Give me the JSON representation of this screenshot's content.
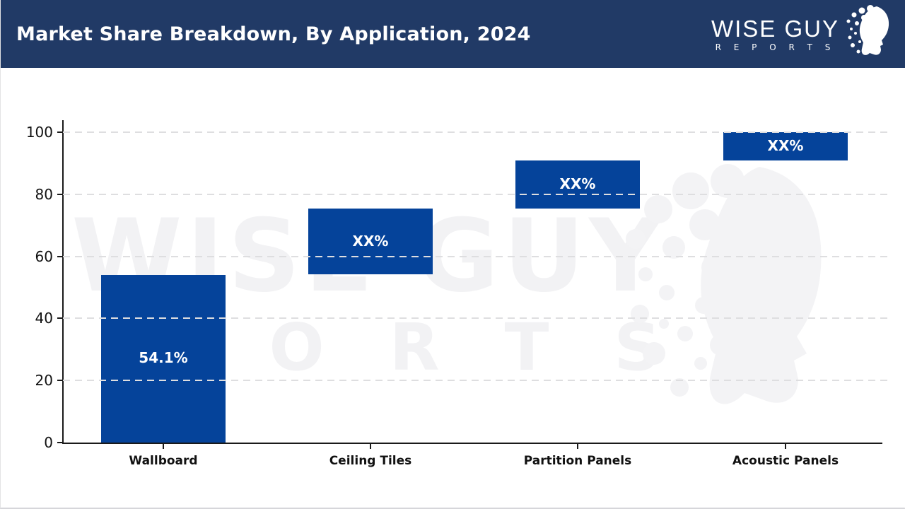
{
  "header": {
    "title": "Market Share Breakdown, By Application, 2024",
    "logo": {
      "line1": "WISE GUY",
      "line2": "R E P O R T S"
    }
  },
  "watermark": {
    "line1": "WISE GUY",
    "line2": "P O R T S"
  },
  "colors": {
    "header_bg": "#213a66",
    "bar": "#05439a",
    "bar_label": "#ffffff",
    "grid": "#dedee0",
    "axis": "#1a1a1a",
    "watermark": "#f2f2f4"
  },
  "chart_data": {
    "type": "bar",
    "subtype": "waterfall",
    "title": "Market Share Breakdown, By Application, 2024",
    "categories": [
      "Wallboard",
      "Ceiling Tiles",
      "Partition Panels",
      "Acoustic Panels"
    ],
    "segments": [
      {
        "category": "Wallboard",
        "start": 0,
        "end": 54.1,
        "value": 54.1,
        "label": "54.1%"
      },
      {
        "category": "Ceiling Tiles",
        "start": 54.1,
        "end": 75.5,
        "value": 21.4,
        "label": "XX%"
      },
      {
        "category": "Partition Panels",
        "start": 75.5,
        "end": 90.8,
        "value": 15.3,
        "label": "XX%"
      },
      {
        "category": "Acoustic Panels",
        "start": 90.8,
        "end": 100,
        "value": 9.2,
        "label": "XX%"
      }
    ],
    "ylabel": "",
    "xlabel": "",
    "unit": "%",
    "ylim": [
      0,
      100
    ],
    "yticks": [
      0,
      20,
      40,
      60,
      80,
      100
    ],
    "grid": "horizontal-dashed-above-bars",
    "legend": "none"
  }
}
